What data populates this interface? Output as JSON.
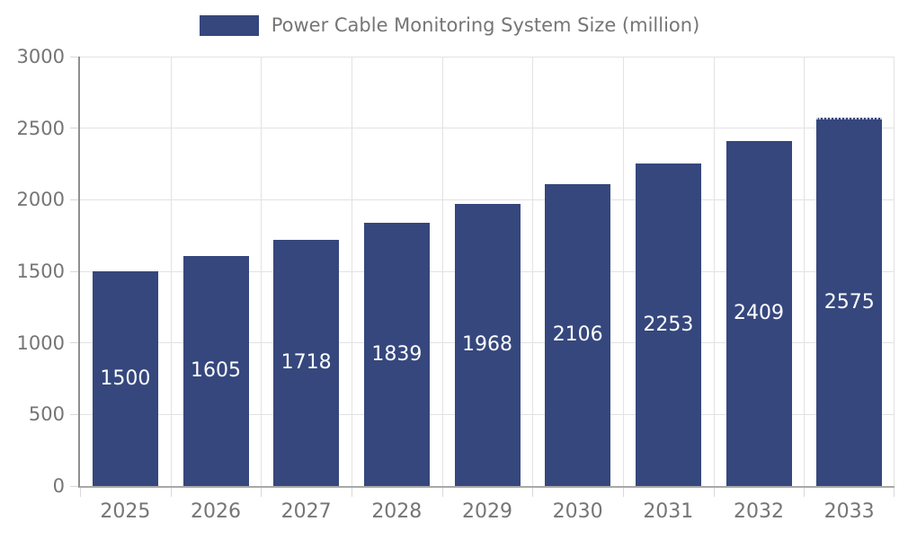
{
  "legend": {
    "label": "Power Cable Monitoring System Size (million)"
  },
  "colors": {
    "bar": "#35477d",
    "bar_label": "#ffffff",
    "axis_text": "#757575",
    "grid": "#e2e2e2",
    "axis_line": "#8f8f8f",
    "axis_bottom": "#a8a8a8",
    "tick": "#d8d8d8",
    "background": "#ffffff"
  },
  "chart_data": {
    "type": "bar",
    "title": "Power Cable Monitoring System Size (million)",
    "categories": [
      "2025",
      "2026",
      "2027",
      "2028",
      "2029",
      "2030",
      "2031",
      "2032",
      "2033"
    ],
    "values": [
      1500,
      1605,
      1718,
      1839,
      1968,
      2106,
      2253,
      2409,
      2575
    ],
    "series": [
      {
        "name": "Power Cable Monitoring System Size (million)",
        "values": [
          1500,
          1605,
          1718,
          1839,
          1968,
          2106,
          2253,
          2409,
          2575
        ]
      }
    ],
    "xlabel": "",
    "ylabel": "",
    "ylim": [
      0,
      3000
    ],
    "yticks": [
      0,
      500,
      1000,
      1500,
      2000,
      2500,
      3000
    ],
    "grid": true,
    "legend_position": "top",
    "bar_labels_inside": true,
    "last_bar_emphasis_dotted_top": true
  }
}
